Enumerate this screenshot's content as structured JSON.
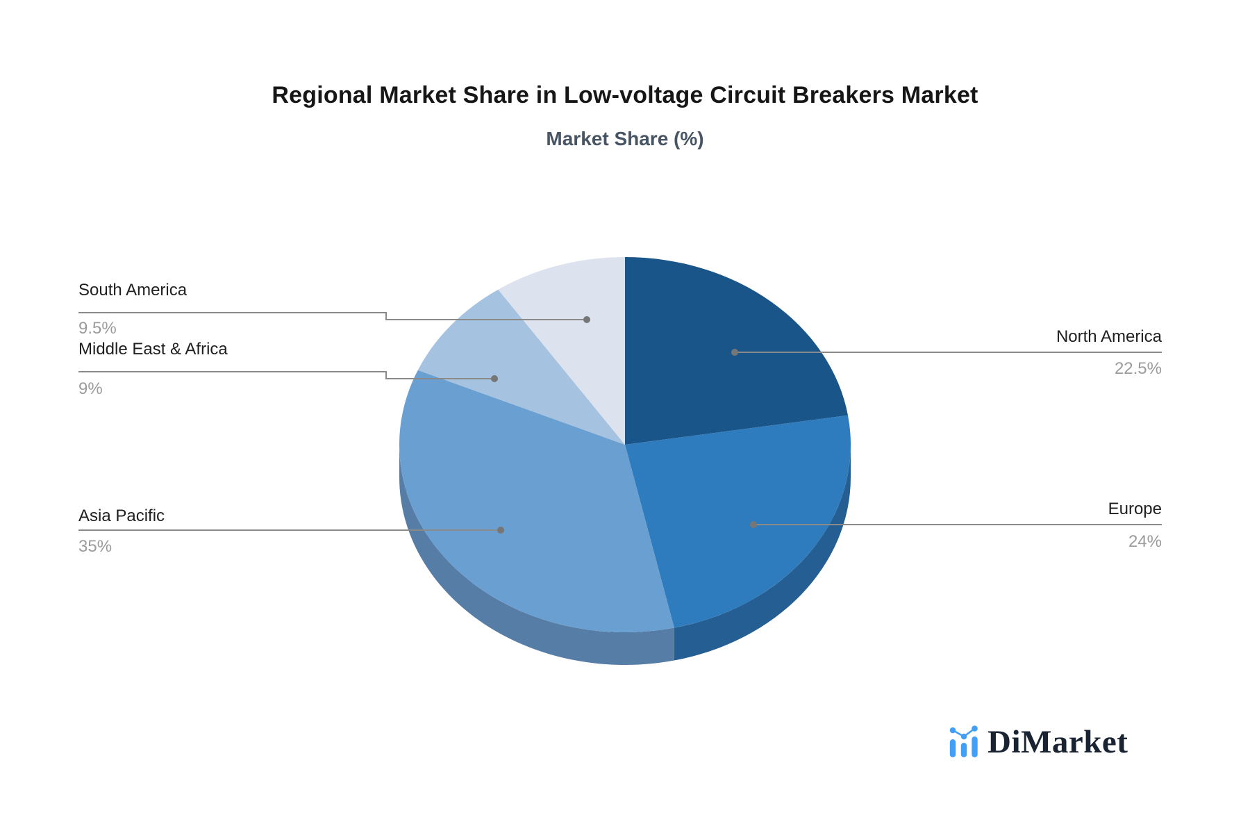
{
  "header": {
    "title": "Regional Market Share in Low-voltage Circuit Breakers Market",
    "subtitle": "Market Share (%)"
  },
  "chart_data": {
    "type": "pie",
    "title": "Regional Market Share in Low-voltage Circuit Breakers Market",
    "subtitle": "Market Share (%)",
    "unit": "%",
    "style": "3d-pie, labels outside with gray leader lines and dots, no legend",
    "start_angle": "12 o'clock",
    "direction": "clockwise",
    "series": [
      {
        "name": "North America",
        "value": 22.5,
        "display": "22.5%",
        "color": "#1a5589",
        "side_color": "#14436c"
      },
      {
        "name": "Europe",
        "value": 24,
        "display": "24%",
        "color": "#2e7bbd",
        "side_color": "#245e92"
      },
      {
        "name": "Asia Pacific",
        "value": 35,
        "display": "35%",
        "color": "#6a9fd2",
        "side_color": "#567da5"
      },
      {
        "name": "Middle East & Africa",
        "value": 9,
        "display": "9%",
        "color": "#a5c3e0",
        "side_color": "#8aa4bf"
      },
      {
        "name": "South America",
        "value": 9.5,
        "display": "9.5%",
        "color": "#dde3ee",
        "side_color": "#b9c2d3"
      }
    ],
    "label_text_color": "#1f1f1f",
    "value_text_color": "#9b9b9b",
    "leader_line_color": "#8a8a8a"
  },
  "branding": {
    "logo_text": "DiMarket",
    "logo_text_color": "#1a2332",
    "icon": "bar-chart-with-trend-dots",
    "icon_color": "#419ff7"
  }
}
